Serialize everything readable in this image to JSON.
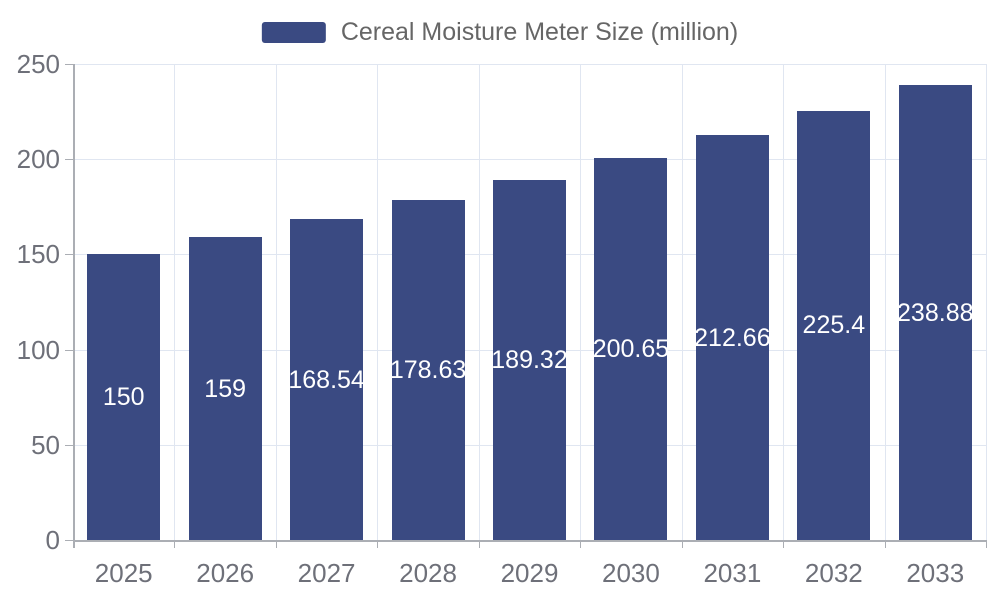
{
  "chart_data": {
    "type": "bar",
    "title": "Cereal Moisture Meter Size (million)",
    "legend": [
      "Cereal Moisture Meter Size (million)"
    ],
    "legend_position": "top-center",
    "categories": [
      "2025",
      "2026",
      "2027",
      "2028",
      "2029",
      "2030",
      "2031",
      "2032",
      "2033"
    ],
    "values": [
      150,
      159,
      168.54,
      178.63,
      189.32,
      200.65,
      212.66,
      225.4,
      238.88
    ],
    "value_labels": [
      "150",
      "159",
      "168.54",
      "178.63",
      "189.32",
      "200.65",
      "212.66",
      "225.4",
      "238.88"
    ],
    "bar_label_position": "inside-center",
    "xlabel": "",
    "ylabel": "",
    "ylim": [
      0,
      250
    ],
    "yticks": [
      0,
      50,
      100,
      150,
      200,
      250
    ],
    "grid": true
  },
  "colors": {
    "bar": "#3A4A82",
    "grid": "#E0E6F1",
    "axis": "#ABAEB4",
    "axis_text": "#6E7079",
    "legend_text": "#666666",
    "value_label": "#FFFFFF",
    "background": "#FFFFFF"
  }
}
